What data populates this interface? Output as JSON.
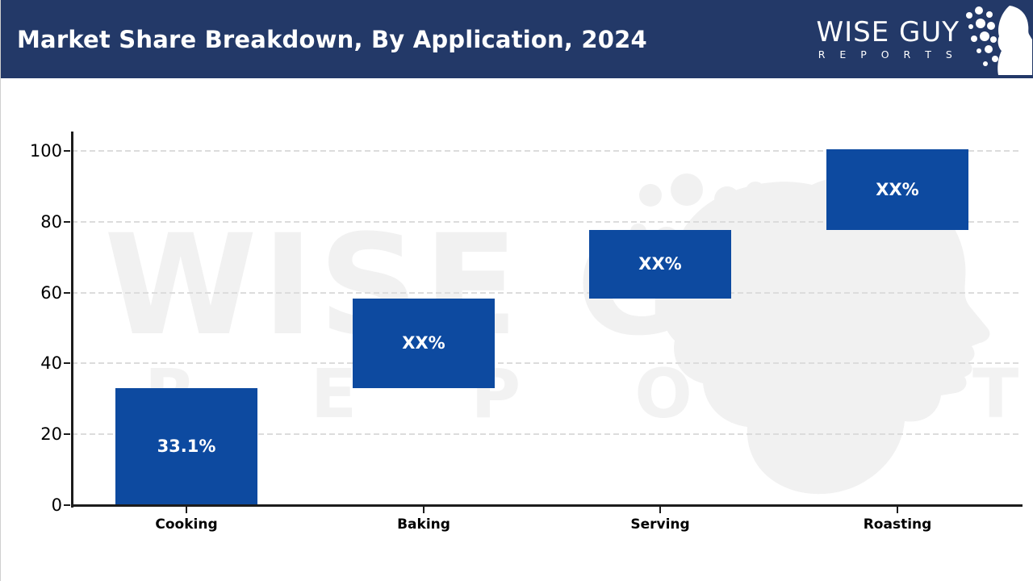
{
  "header": {
    "title": "Market Share Breakdown, By Application, 2024",
    "logo": {
      "brand_line1": "WISE GUY",
      "brand_line2": "R E P O R T S"
    }
  },
  "watermark": {
    "line1": "WISE GUY",
    "line2": "R E P O R T S"
  },
  "chart_data": {
    "type": "bar",
    "subtype": "waterfall",
    "title": "Market Share Breakdown, By Application, 2024",
    "categories": [
      "Cooking",
      "Baking",
      "Serving",
      "Roasting"
    ],
    "segments": [
      {
        "category": "Cooking",
        "start": 0,
        "end": 33.1,
        "label": "33.1%"
      },
      {
        "category": "Baking",
        "start": 33.1,
        "end": 58.4,
        "label": "XX%"
      },
      {
        "category": "Serving",
        "start": 58.4,
        "end": 77.6,
        "label": "XX%"
      },
      {
        "category": "Roasting",
        "start": 77.6,
        "end": 100.4,
        "label": "XX%"
      }
    ],
    "yticks": [
      "0",
      "20",
      "40",
      "60",
      "80",
      "100"
    ],
    "ytick_values": [
      0,
      20,
      40,
      60,
      80,
      100
    ],
    "ylim": [
      0,
      105
    ],
    "xlabel": "",
    "ylabel": "",
    "grid": "horizontal-dashed",
    "legend": null
  },
  "colors": {
    "header_bg": "#233968",
    "bar": "#0d4aa0",
    "bar_label": "#ffffff",
    "axis": "#1c1c1c",
    "gridline": "#dcdcdc",
    "watermark": "#f1f1f1"
  }
}
